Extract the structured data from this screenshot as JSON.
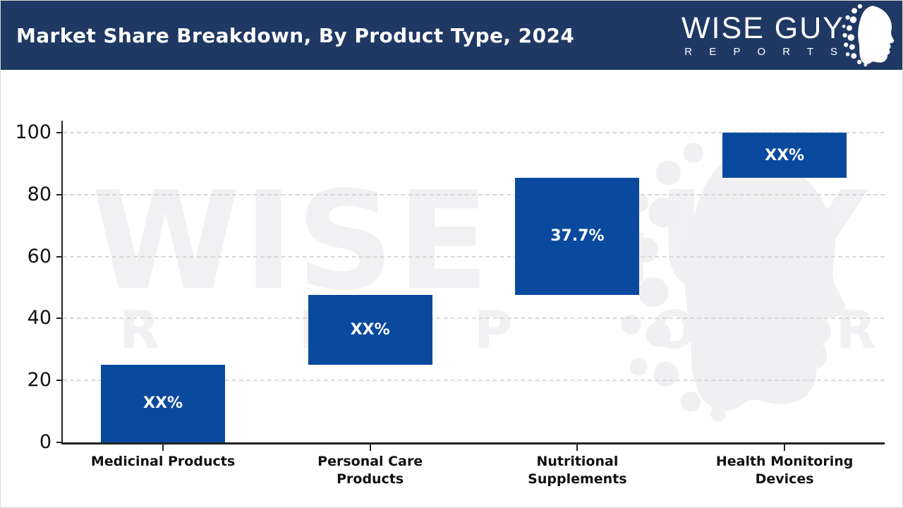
{
  "header": {
    "title": "Market Share Breakdown, By Product Type, 2024"
  },
  "logo": {
    "line1": "WISE GUY",
    "line2": "R E P O R T S"
  },
  "watermark": {
    "line1": "WISE GUY",
    "line2": "R E P O R T S"
  },
  "colors": {
    "header_bg": "#1f3864",
    "bar": "#0a4a9e",
    "axis": "#222222",
    "grid": "#d9d9d9",
    "watermark": "#f1f1f4",
    "page_border": "#d9d9d9"
  },
  "chart_data": {
    "type": "bar",
    "subtype": "waterfall",
    "title": "Market Share Breakdown, By Product Type, 2024",
    "categories": [
      "Medicinal Products",
      "Personal Care\nProducts",
      "Nutritional\nSupplements",
      "Health Monitoring\nDevices"
    ],
    "segments": [
      {
        "category": "Medicinal Products",
        "start": 0,
        "end": 25.1,
        "height": 25.1,
        "label": "XX%"
      },
      {
        "category": "Personal Care Products",
        "start": 25.1,
        "end": 47.7,
        "height": 22.6,
        "label": "XX%"
      },
      {
        "category": "Nutritional Supplements",
        "start": 47.7,
        "end": 85.4,
        "height": 37.7,
        "label": "37.7%"
      },
      {
        "category": "Health Monitoring Devices",
        "start": 85.4,
        "end": 100,
        "height": 14.6,
        "label": "XX%"
      }
    ],
    "xlabel": "",
    "ylabel": "",
    "ylim": [
      0,
      100
    ],
    "yticks": [
      0,
      20,
      40,
      60,
      80,
      100
    ],
    "grid": {
      "axis": "y",
      "style": "dashed"
    },
    "legend": "none",
    "bar_color": "#0a4a9e",
    "bar_label_color": "#ffffff"
  }
}
